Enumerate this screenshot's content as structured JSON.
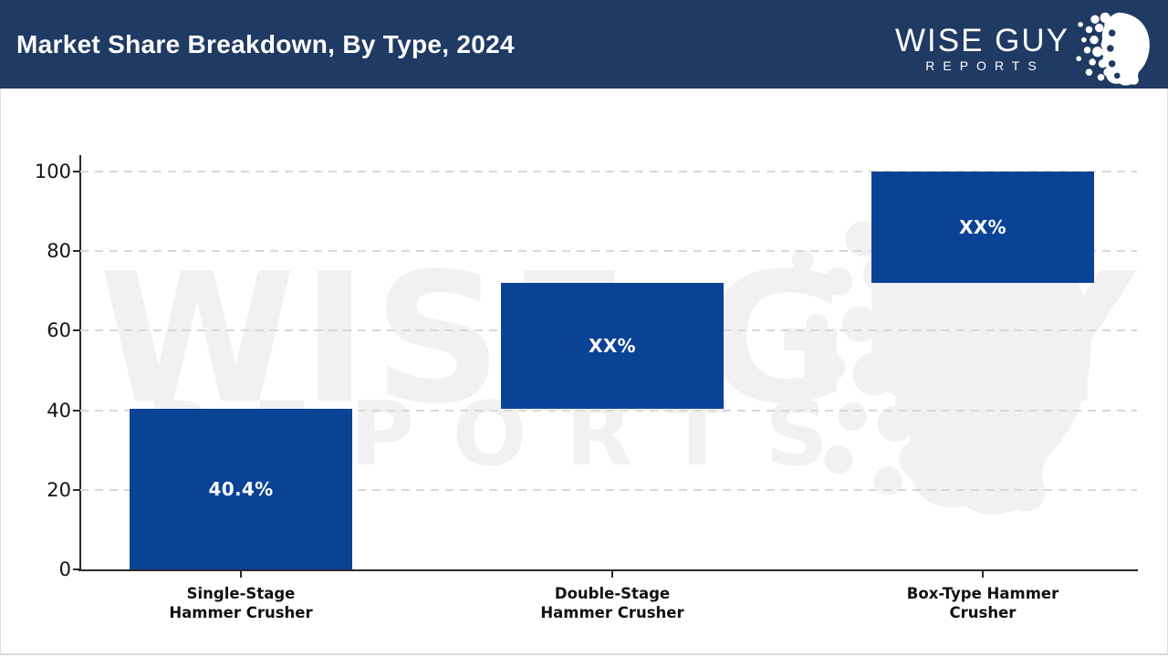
{
  "header": {
    "title": "Market Share Breakdown, By Type, 2024",
    "logo": {
      "brand_line1": "WISE GUY",
      "brand_line2": "REPORTS"
    }
  },
  "watermark": {
    "line1": "WISE GUY",
    "line2": "REPORTS"
  },
  "chart_data": {
    "type": "bar",
    "variant": "waterfall-style floating bars",
    "title": "Market Share Breakdown, By Type, 2024",
    "categories": [
      "Single-Stage Hammer Crusher",
      "Double-Stage Hammer Crusher",
      "Box-Type Hammer Crusher"
    ],
    "series": [
      {
        "name": "Market Share (%)",
        "segments": [
          {
            "category": "Single-Stage Hammer Crusher",
            "start": 0,
            "end": 40.4,
            "label": "40.4%"
          },
          {
            "category": "Double-Stage Hammer Crusher",
            "start": 40.4,
            "end": 72,
            "label": "XX%"
          },
          {
            "category": "Box-Type Hammer Crusher",
            "start": 72,
            "end": 100,
            "label": "XX%"
          }
        ]
      }
    ],
    "yticks": [
      0,
      20,
      40,
      60,
      80,
      100
    ],
    "ylim": [
      0,
      104
    ],
    "xlabel": "",
    "ylabel": "",
    "grid": "horizontal-dashed",
    "legend": "none",
    "bar_color": "#0a4296",
    "bar_label_color": "#ffffff"
  },
  "colors": {
    "header_bg": "#1f3a63",
    "bar": "#0a4296",
    "axis": "#2a2a2a",
    "gridline": "#d8d8d8",
    "tick_label": "#141414",
    "watermark": "#f1f1f3",
    "bottom_rule": "#d9d9d9"
  }
}
